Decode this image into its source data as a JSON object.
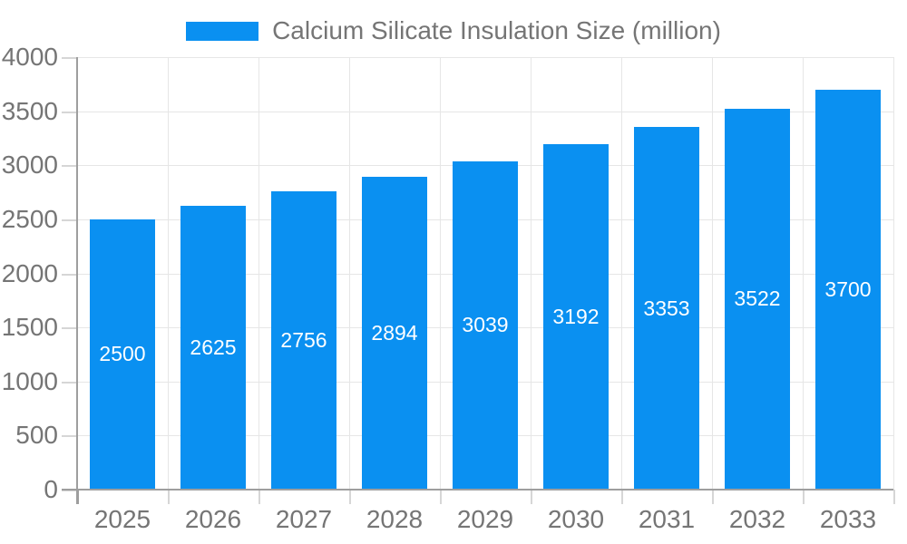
{
  "legend": {
    "label": "Calcium Silicate Insulation Size (million)"
  },
  "chart_data": {
    "type": "bar",
    "title": "Calcium Silicate Insulation Size (million)",
    "categories": [
      "2025",
      "2026",
      "2027",
      "2028",
      "2029",
      "2030",
      "2031",
      "2032",
      "2033"
    ],
    "values": [
      2500,
      2625,
      2756,
      2894,
      3039,
      3192,
      3353,
      3522,
      3700
    ],
    "xlabel": "",
    "ylabel": "",
    "ylim": [
      0,
      4000
    ],
    "ytick_step": 500,
    "ytick_labels": [
      "0",
      "500",
      "1000",
      "1500",
      "2000",
      "2500",
      "3000",
      "3500",
      "4000"
    ],
    "grid": true,
    "legend_position": "top",
    "value_labels": "inside-center",
    "colors": {
      "bar": "#0a90f1",
      "value_label": "#ffffff",
      "axis_text": "#757575",
      "axis_line": "#9e9e9e",
      "gridline": "#e6e6e6",
      "tick": "#d6d6d6",
      "background": "#ffffff"
    }
  }
}
